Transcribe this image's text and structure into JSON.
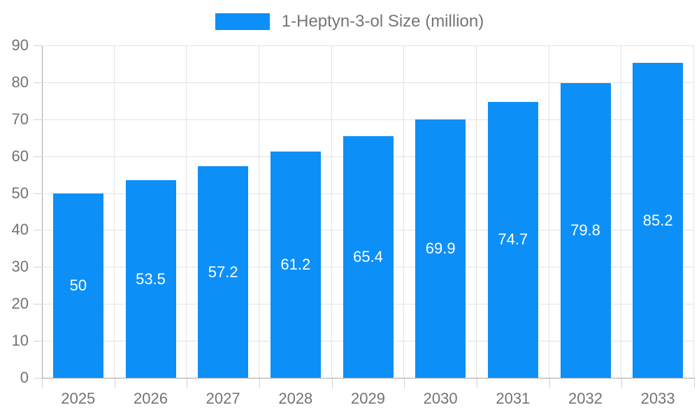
{
  "chart_data": {
    "type": "bar",
    "title": "1-Heptyn-3-ol Size (million)",
    "xlabel": "",
    "ylabel": "",
    "categories": [
      "2025",
      "2026",
      "2027",
      "2028",
      "2029",
      "2030",
      "2031",
      "2032",
      "2033"
    ],
    "series": [
      {
        "name": "1-Heptyn-3-ol Size (million)",
        "values": [
          50,
          53.5,
          57.2,
          61.2,
          65.4,
          69.9,
          74.7,
          79.8,
          85.2
        ],
        "value_labels": [
          "50",
          "53.5",
          "57.2",
          "61.2",
          "65.4",
          "69.9",
          "74.7",
          "79.8",
          "85.2"
        ]
      }
    ],
    "legend": [
      {
        "label": "1-Heptyn-3-ol Size (million)",
        "color": "#0D8FF8"
      }
    ],
    "legend_position": "top-center",
    "ylim": [
      0,
      90
    ],
    "ytick_step": 10,
    "yticks": [
      "0",
      "10",
      "20",
      "30",
      "40",
      "50",
      "60",
      "70",
      "80",
      "90"
    ],
    "grid": "both",
    "value_labels_inside_bars": true
  },
  "colors": {
    "bar": "#0D8FF8",
    "legend_text": "#757575",
    "axis_text": "#737373",
    "grid_line": "#E3E3E3",
    "axis_line": "#A6A6A6",
    "tick_line": "#D2D2D2",
    "value_label_text": "#FFFFFF",
    "background": "#FFFFFF"
  }
}
